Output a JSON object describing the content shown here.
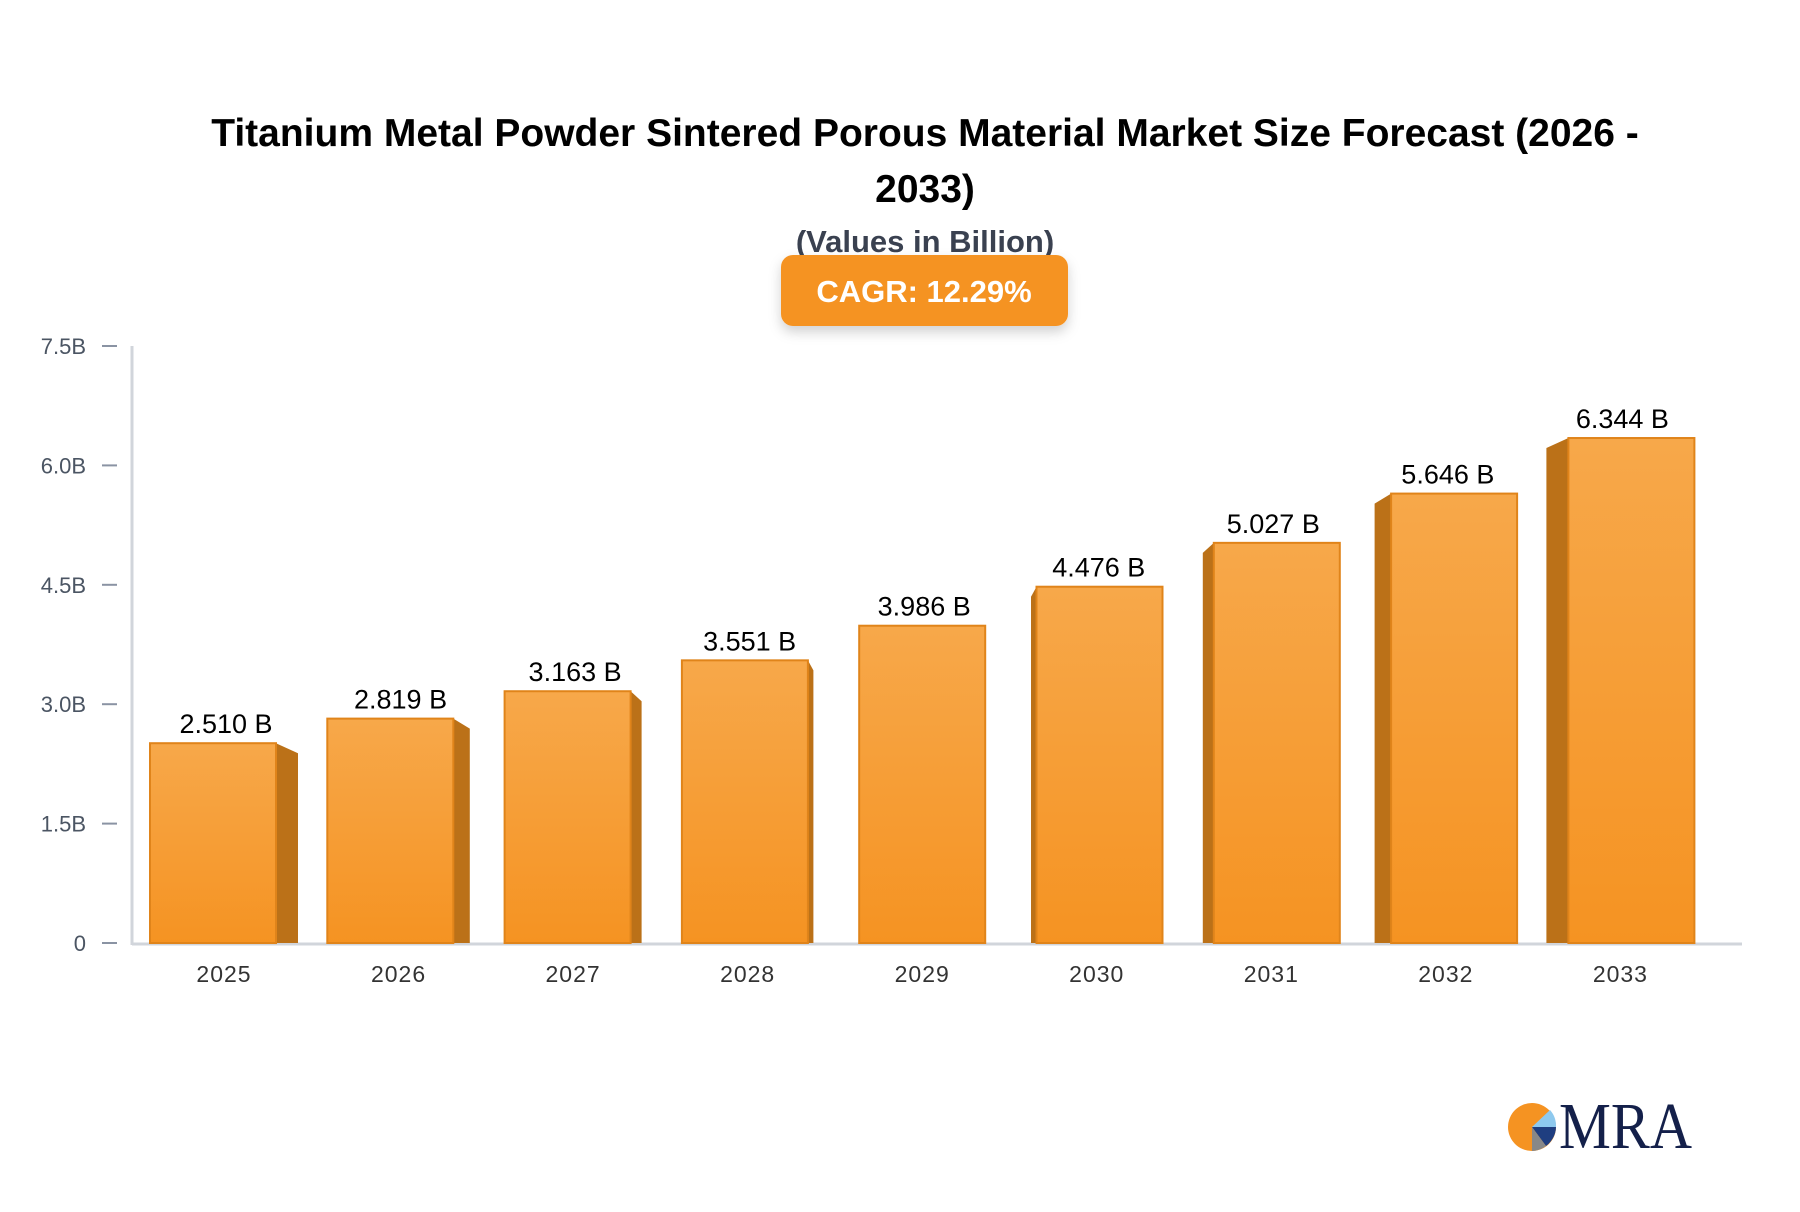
{
  "chart_data": {
    "type": "bar",
    "title": "Titanium Metal Powder Sintered Porous Material Market Size Forecast (2026 - 2033)",
    "title_lines": [
      "Titanium Metal Powder Sintered Porous Material Market Size Forecast (2026 -",
      "2033)"
    ],
    "subtitle": "(Values in Billion)",
    "badge": "CAGR: 12.29%",
    "categories": [
      "2025",
      "2026",
      "2027",
      "2028",
      "2029",
      "2030",
      "2031",
      "2032",
      "2033"
    ],
    "values": [
      2.51,
      2.819,
      3.163,
      3.551,
      3.986,
      4.476,
      5.027,
      5.646,
      6.344
    ],
    "data_labels": [
      "2.510 B",
      "2.819 B",
      "3.163 B",
      "3.551 B",
      "3.986 B",
      "4.476 B",
      "5.027 B",
      "5.646 B",
      "6.344 B"
    ],
    "ylim": [
      0,
      7.5
    ],
    "yticks": [
      0,
      1.5,
      3.0,
      4.5,
      6.0,
      7.5
    ],
    "ytick_labels": [
      "0",
      "1.5B",
      "3.0B",
      "4.5B",
      "6.0B",
      "7.5B"
    ],
    "xlabel": "",
    "ylabel": "",
    "grid": false,
    "legend": "none",
    "colors": {
      "bar_top": "#f7a84a",
      "bar_bottom": "#f59322",
      "bar_side": "#bb7118",
      "badge": "#f59322",
      "axis": "#d1d5db"
    }
  },
  "logo": {
    "text": "MRA"
  }
}
